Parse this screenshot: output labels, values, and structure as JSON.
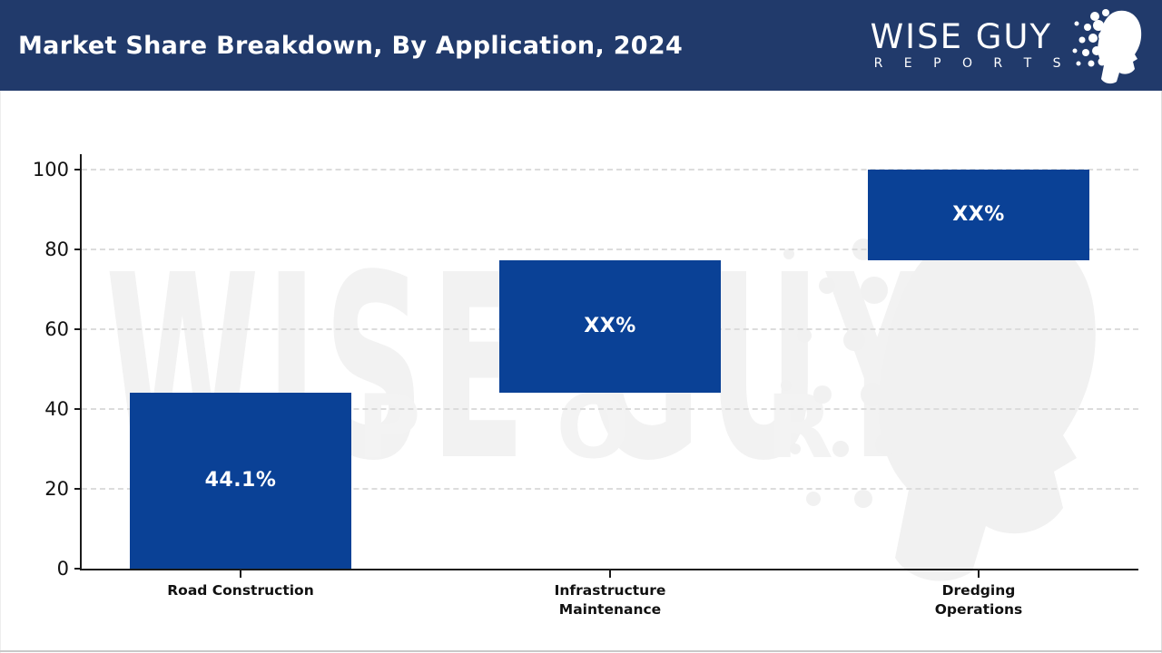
{
  "header": {
    "title": "Market Share Breakdown, By Application, 2024",
    "logo": {
      "line1": "WISE GUY",
      "line2": "R E P O R T S"
    }
  },
  "watermark": {
    "word": "WISE GUY",
    "row": "P O R T S"
  },
  "colors": {
    "header_bg": "#213a6b",
    "bar": "#0a4196",
    "axis": "#1a1a1a",
    "grid": "#dcdcdc",
    "watermark": "#f2f2f2",
    "label_on_bar": "#ffffff"
  },
  "chart_data": {
    "type": "bar",
    "subtype": "waterfall",
    "title": "Market Share Breakdown, By Application, 2024",
    "categories": [
      "Road Construction",
      "Infrastructure Maintenance",
      "Dredging Operations"
    ],
    "segments": [
      {
        "category": "Road Construction",
        "start": 0,
        "end": 44.1,
        "label": "44.1%"
      },
      {
        "category": "Infrastructure Maintenance",
        "start": 44.1,
        "end": 77.3,
        "label": "XX%"
      },
      {
        "category": "Dredging Operations",
        "start": 77.3,
        "end": 100,
        "label": "XX%"
      }
    ],
    "ylim": [
      0,
      100
    ],
    "yticks": [
      0,
      20,
      40,
      60,
      80,
      100
    ],
    "xlabel": "",
    "ylabel": "",
    "grid": "horizontal-dashed",
    "legend": "none"
  }
}
